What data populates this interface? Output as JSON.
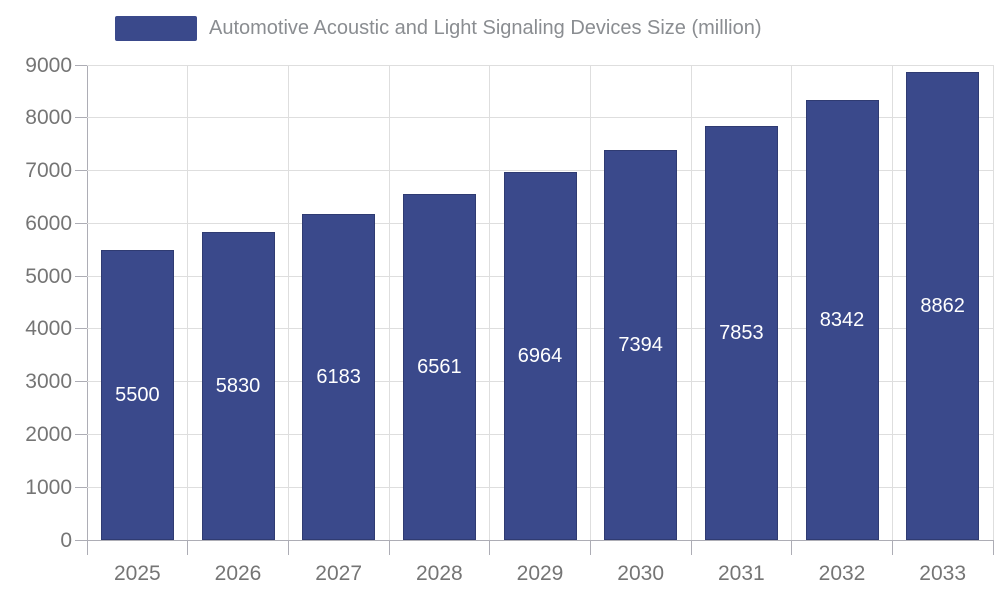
{
  "legend": {
    "label": "Automotive Acoustic and Light Signaling Devices Size (million)"
  },
  "chart_data": {
    "type": "bar",
    "title": "Automotive Acoustic and Light Signaling Devices Size (million)",
    "categories": [
      "2025",
      "2026",
      "2027",
      "2028",
      "2029",
      "2030",
      "2031",
      "2032",
      "2033"
    ],
    "values": [
      5500,
      5830,
      6183,
      6561,
      6964,
      7394,
      7853,
      8342,
      8862
    ],
    "series": [
      {
        "name": "Automotive Acoustic and Light Signaling Devices Size (million)",
        "values": [
          5500,
          5830,
          6183,
          6561,
          6964,
          7394,
          7853,
          8342,
          8862
        ]
      }
    ],
    "xlabel": "",
    "ylabel": "",
    "ylim": [
      0,
      9000
    ],
    "ytick_step": 1000,
    "ytick_labels": [
      "0",
      "1000",
      "2000",
      "3000",
      "4000",
      "5000",
      "6000",
      "7000",
      "8000",
      "9000"
    ],
    "grid": true,
    "legend_position": "top-left",
    "value_labels_shown": true,
    "colors": {
      "bar_fill": "#3a498b",
      "bar_border": "#2f3b72",
      "value_label_text": "#ffffff",
      "grid_line": "#dedede",
      "axis_line": "#adadb5",
      "tick_text": "#757575",
      "legend_text": "#8a8d91"
    }
  }
}
